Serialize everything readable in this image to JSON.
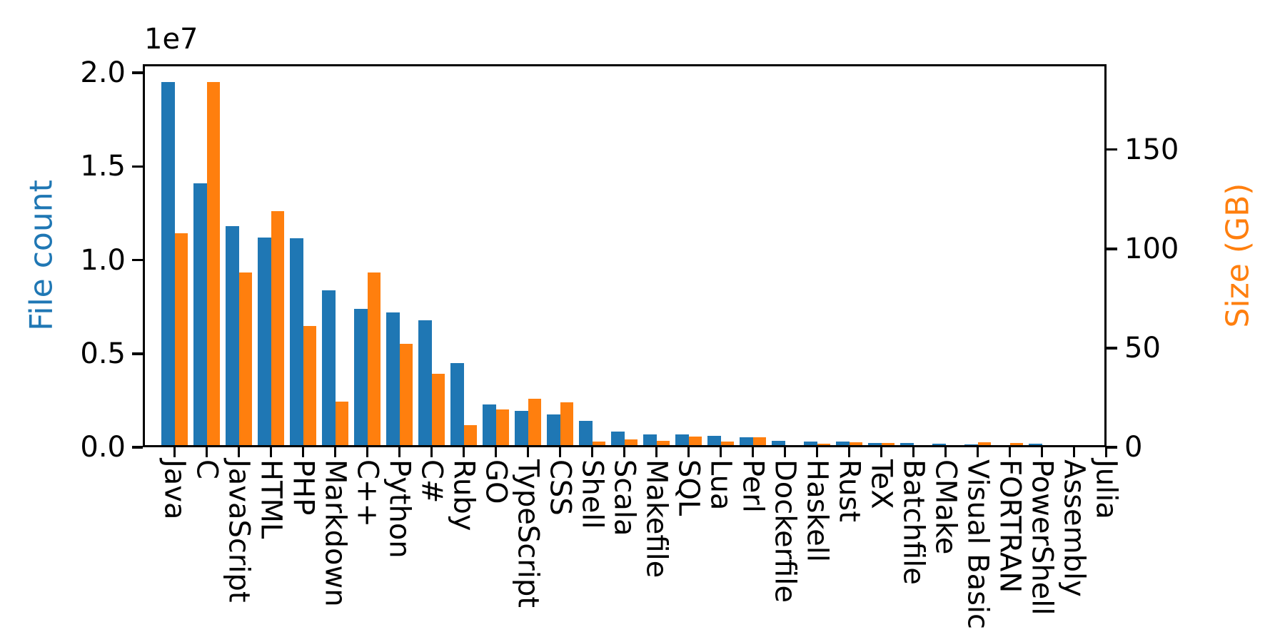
{
  "chart_data": {
    "type": "bar",
    "title": "",
    "categories": [
      "Java",
      "C",
      "JavaScript",
      "HTML",
      "PHP",
      "Markdown",
      "C++",
      "Python",
      "C#",
      "Ruby",
      "GO",
      "TypeScript",
      "CSS",
      "Shell",
      "Scala",
      "Makefile",
      "SQL",
      "Lua",
      "Perl",
      "Dockerfile",
      "Haskell",
      "Rust",
      "TeX",
      "Batchfile",
      "CMake",
      "Visual Basic",
      "FORTRAN",
      "PowerShell",
      "Assembly",
      "Julia"
    ],
    "series": [
      {
        "name": "File count",
        "axis": "left",
        "color": "#1f77b4",
        "values": [
          19500000,
          14100000,
          11800000,
          11200000,
          11150000,
          8400000,
          7400000,
          7200000,
          6800000,
          4500000,
          2300000,
          1950000,
          1750000,
          1400000,
          850000,
          700000,
          700000,
          620000,
          520000,
          340000,
          300000,
          300000,
          230000,
          230000,
          190000,
          160000,
          130000,
          180000,
          100000,
          60000
        ]
      },
      {
        "name": "Size (GB)",
        "axis": "right",
        "color": "#ff7f0e",
        "values": [
          108,
          184,
          88,
          119,
          61,
          23,
          88,
          52,
          37,
          11,
          19,
          24.5,
          22.5,
          3,
          3.9,
          3.2,
          5.4,
          2.9,
          5,
          1.1,
          1.8,
          2.5,
          2.1,
          0.3,
          0.3,
          2.5,
          2,
          0.3,
          0.7,
          0.15
        ]
      }
    ],
    "left_axis": {
      "label": "File count",
      "color": "#1f77b4",
      "offset_text": "1e7",
      "max": 20460000,
      "ticks": [
        {
          "value": 0,
          "label": "0.0"
        },
        {
          "value": 5000000,
          "label": "0.5"
        },
        {
          "value": 10000000,
          "label": "1.0"
        },
        {
          "value": 15000000,
          "label": "1.5"
        },
        {
          "value": 20000000,
          "label": "2.0"
        }
      ]
    },
    "right_axis": {
      "label": "Size (GB)",
      "color": "#ff7f0e",
      "max": 193,
      "ticks": [
        {
          "value": 0,
          "label": "0"
        },
        {
          "value": 50,
          "label": "50"
        },
        {
          "value": 100,
          "label": "100"
        },
        {
          "value": 150,
          "label": "150"
        }
      ]
    },
    "x_axis": {
      "tick_label_rotation_deg": 90
    },
    "legend": "none",
    "grid": false,
    "background": "#ffffff"
  }
}
